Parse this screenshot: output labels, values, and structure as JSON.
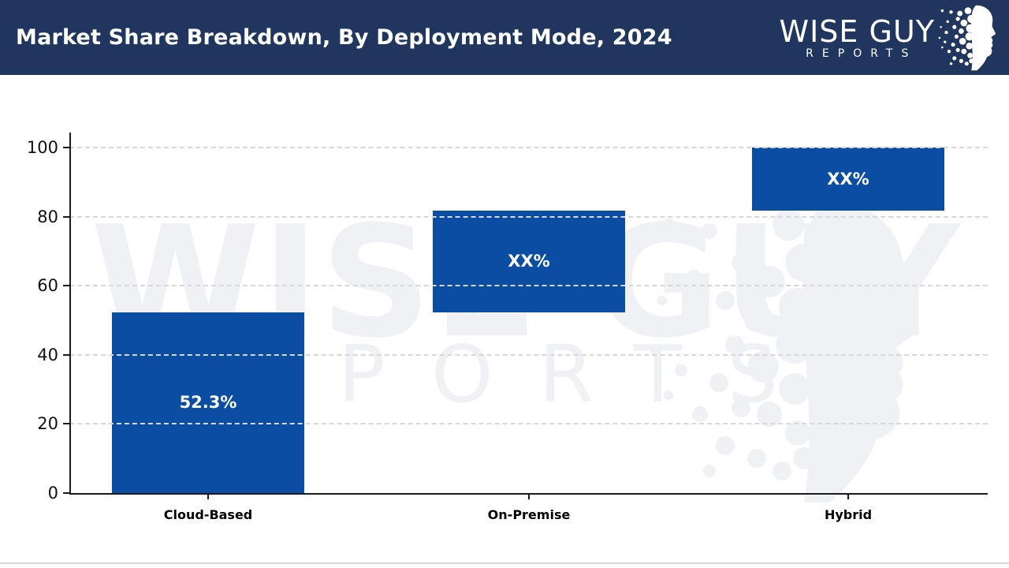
{
  "header": {
    "title": "Market Share Breakdown, By Deployment Mode, 2024",
    "logo": {
      "wordmark": "WISE GUY",
      "tagline": "REPORTS"
    }
  },
  "watermark": {
    "wordmark": "WISE GUY",
    "tagline": "REPORTS"
  },
  "chart_data": {
    "type": "bar",
    "variant": "floating-breakdown-columns",
    "title": "Market Share Breakdown, By Deployment Mode, 2024",
    "categories": [
      "Cloud-Based",
      "On-Premise",
      "Hybrid"
    ],
    "segments": [
      {
        "category": "Cloud-Based",
        "start": 0,
        "end": 52.3,
        "label": "52.3%"
      },
      {
        "category": "On-Premise",
        "start": 52.3,
        "end": 81.8,
        "label": "XX%"
      },
      {
        "category": "Hybrid",
        "start": 81.8,
        "end": 100,
        "label": "XX%"
      }
    ],
    "xlabel": "",
    "ylabel": "",
    "ylim": [
      0,
      100
    ],
    "yticks": [
      0,
      20,
      40,
      60,
      80,
      100
    ],
    "grid": {
      "horizontal": true,
      "style": "dashed",
      "above_bars": true
    },
    "legend": null,
    "colors": {
      "header_bg": "#21365f",
      "bar": "#0b4da2",
      "bar_label": "#ffffff",
      "axis": "#1a1a1a",
      "grid": "#d8d8d8",
      "tick_label": "#111111",
      "watermark": "#f0f1f5"
    }
  }
}
